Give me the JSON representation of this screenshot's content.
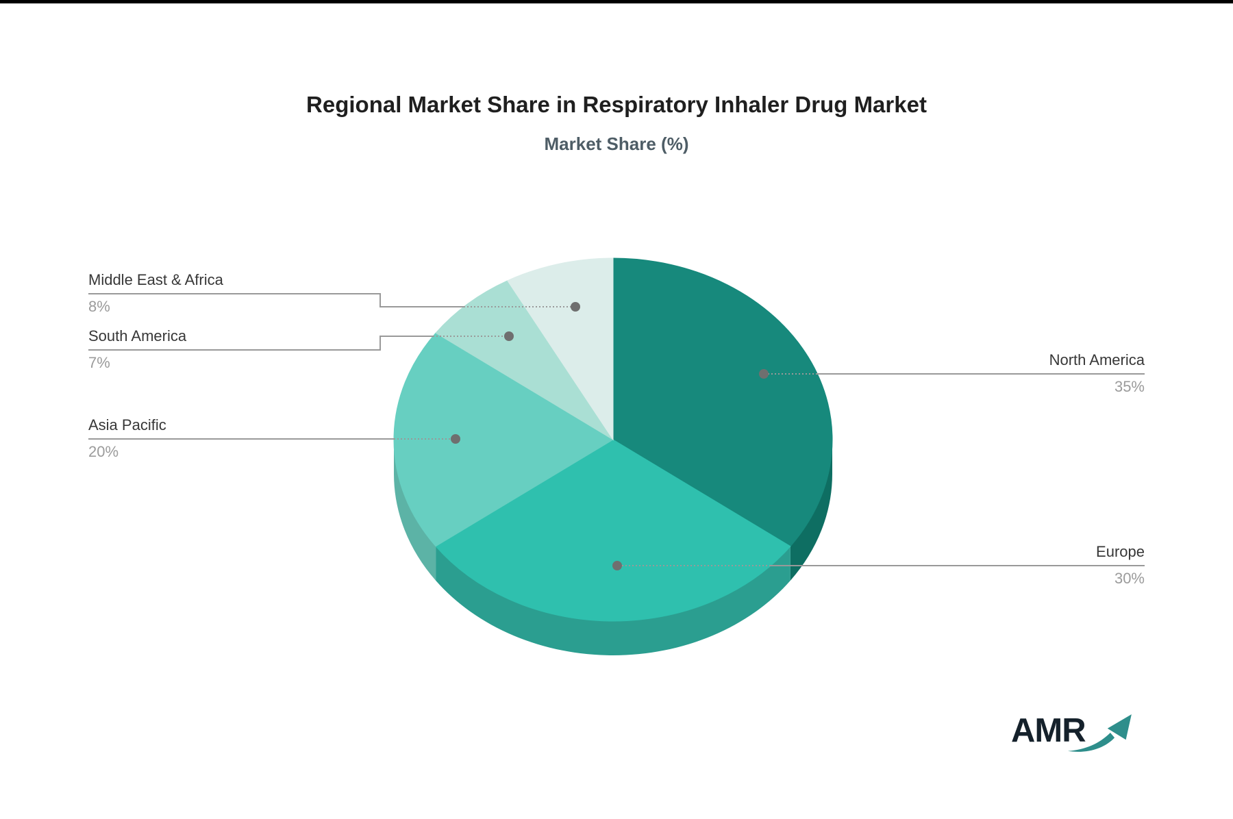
{
  "header": {
    "title": "Regional Market Share in Respiratory Inhaler Drug Market",
    "subtitle": "Market Share (%)"
  },
  "chart_data": {
    "type": "pie",
    "title": "Regional Market Share in Respiratory Inhaler Drug Market",
    "subtitle": "Market Share (%)",
    "unit": "%",
    "style": "3d",
    "start_angle_deg": 0,
    "direction": "clockwise",
    "legend_position": "callout-labels",
    "segments": [
      {
        "label": "North America",
        "value": 35,
        "percent_label": "35%",
        "color": "#17897c",
        "side_color": "#0e6e62"
      },
      {
        "label": "Europe",
        "value": 30,
        "percent_label": "30%",
        "color": "#2fc0ae",
        "side_color": "#2b9e90"
      },
      {
        "label": "Asia Pacific",
        "value": 20,
        "percent_label": "20%",
        "color": "#67cfc1",
        "side_color": "#5cb3a6"
      },
      {
        "label": "South America",
        "value": 7,
        "percent_label": "7%",
        "color": "#aadfd4",
        "side_color": "#9cccc1"
      },
      {
        "label": "Middle East & Africa",
        "value": 8,
        "percent_label": "8%",
        "color": "#dcedea",
        "side_color": "#c8ddd9"
      }
    ],
    "line_color": "#999999",
    "dot_color": "#6f6f6f"
  },
  "logo": {
    "text": "AMR",
    "arrow_color": "#2e8e8b"
  }
}
